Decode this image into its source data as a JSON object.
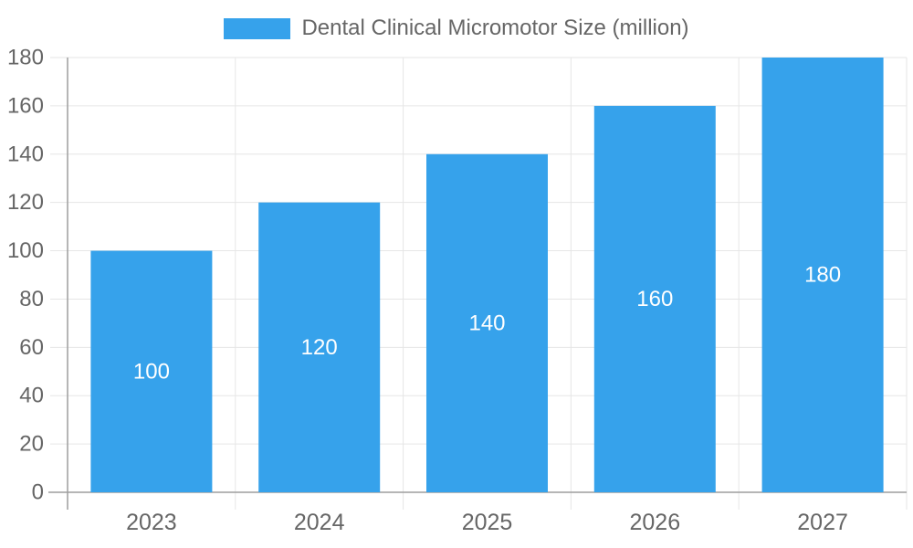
{
  "chart_data": {
    "type": "bar",
    "title": "Dental Clinical Micromotor Size (million)",
    "categories": [
      "2023",
      "2024",
      "2025",
      "2026",
      "2027"
    ],
    "values": [
      100,
      120,
      140,
      160,
      180
    ],
    "xlabel": "",
    "ylabel": "",
    "ylim": [
      0,
      180
    ],
    "ytick_step": 20,
    "grid": true,
    "legend_position": "top",
    "colors": {
      "bar": "#36a2eb",
      "bar_value_label": "#ffffff",
      "grid_line": "#e6e6e6",
      "axis_line": "#9e9e9e",
      "tick_label": "#666666",
      "legend_text": "#666666",
      "background": "#ffffff"
    }
  }
}
